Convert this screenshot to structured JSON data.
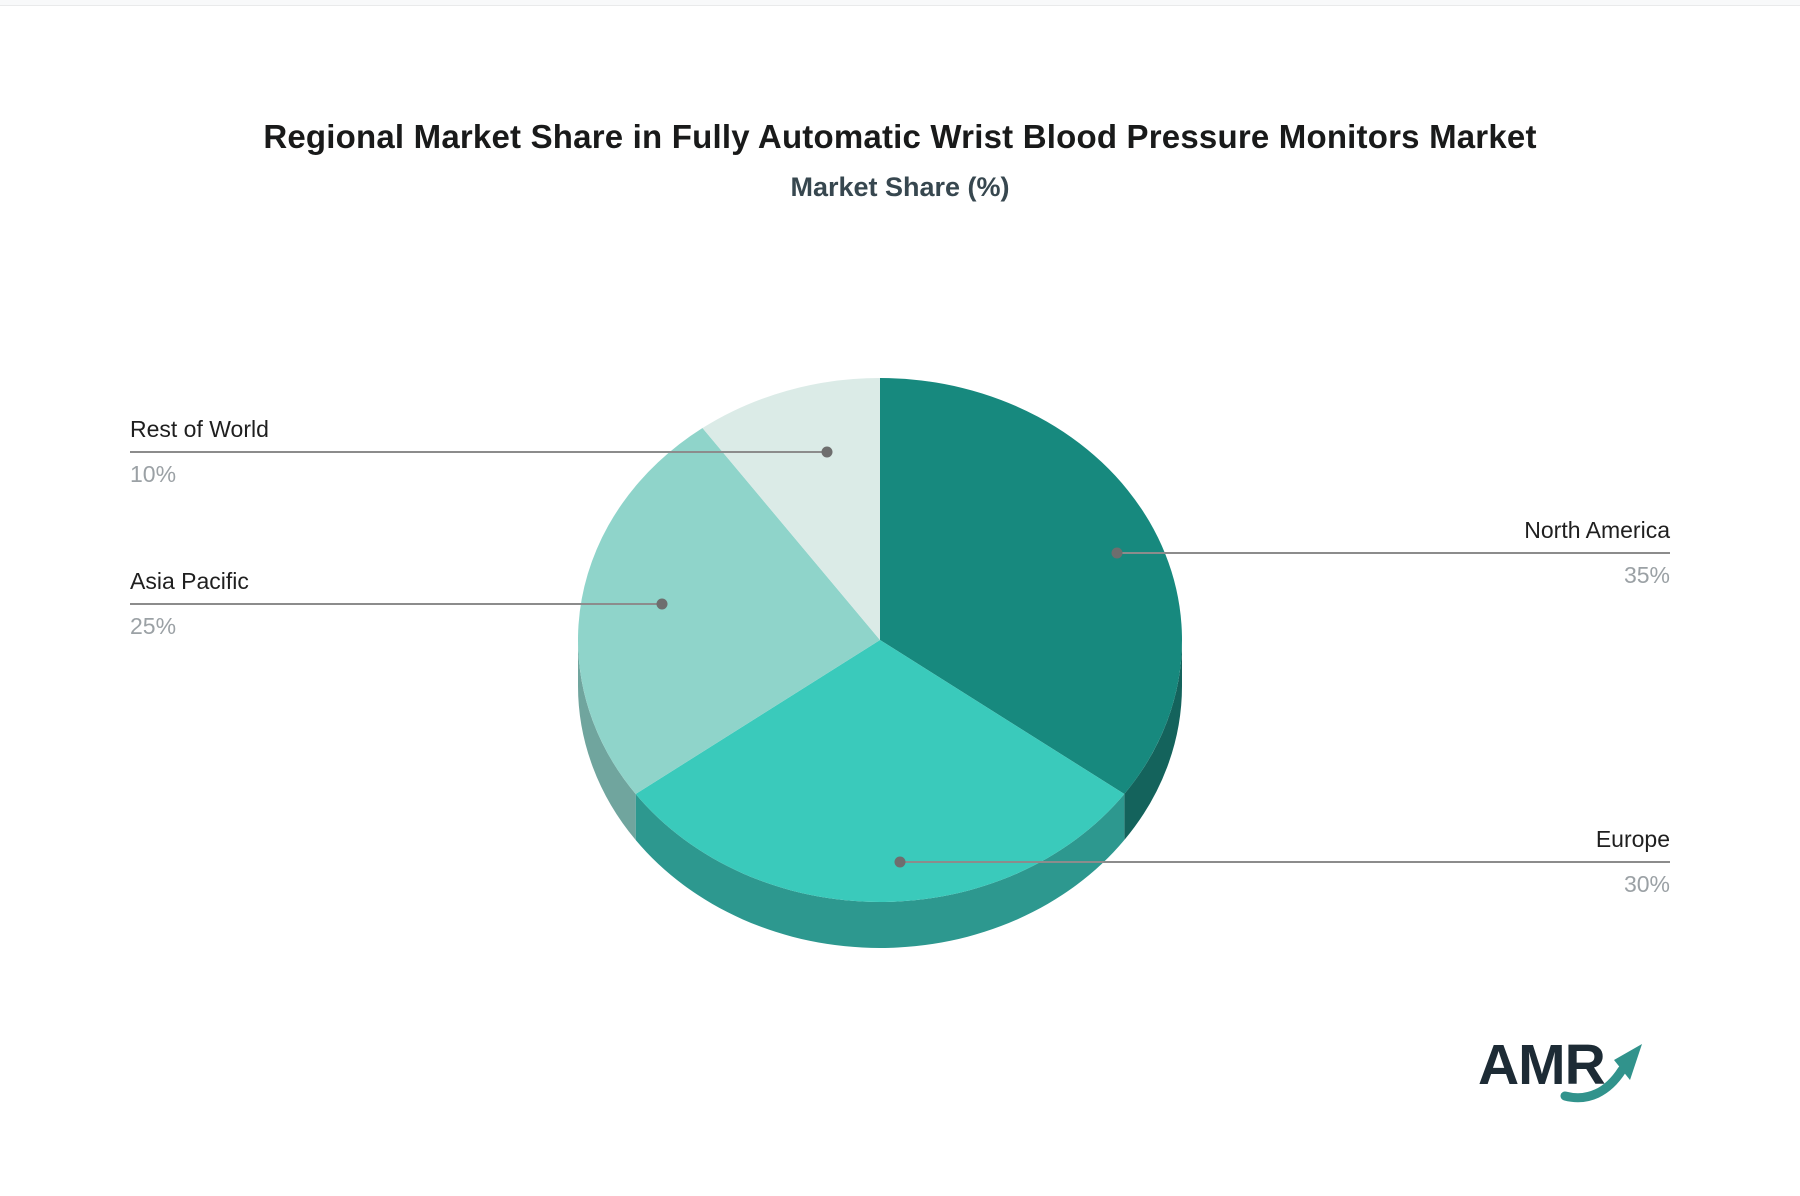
{
  "page": {
    "background": "#ffffff"
  },
  "chart_data": {
    "type": "pie",
    "title": "Regional Market Share in Fully Automatic Wrist Blood Pressure Monitors Market",
    "subtitle": "Market Share (%)",
    "unit": "%",
    "effect_3d": true,
    "start_angle_deg": -90,
    "direction": "clockwise",
    "legend_position": "none",
    "categories": [
      "North America",
      "Europe",
      "Asia Pacific",
      "Rest of World"
    ],
    "values": [
      35,
      30,
      25,
      10
    ],
    "slice_colors": {
      "top": [
        "#17897e",
        "#3acabb",
        "#8fd4ca",
        "#dbebe7"
      ],
      "side": [
        "#14635c",
        "#2d988f",
        "#70a59e",
        "#b9cfca"
      ]
    },
    "labels": [
      {
        "name": "North America",
        "value_label": "35%",
        "side": "right"
      },
      {
        "name": "Europe",
        "value_label": "30%",
        "side": "right"
      },
      {
        "name": "Asia Pacific",
        "value_label": "25%",
        "side": "left"
      },
      {
        "name": "Rest of World",
        "value_label": "10%",
        "side": "left"
      }
    ],
    "leader_line_color": "#8c8c8c",
    "leader_dot_color": "#6e6e6e",
    "label_name_color": "#1f1f1f",
    "label_value_color": "#9ba1a5",
    "title_color": "#191a1a",
    "subtitle_color": "#37474f"
  },
  "logo": {
    "text": "AMR",
    "text_color": "#1d2b35",
    "arrow_color": "#31938c"
  }
}
